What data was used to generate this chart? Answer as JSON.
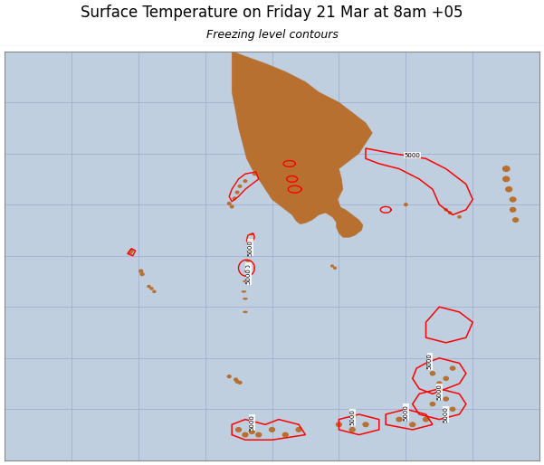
{
  "title": "Surface Temperature on Friday 21 Mar at 8am +05",
  "subtitle": "Freezing level contours",
  "title_fontsize": 12,
  "subtitle_fontsize": 9,
  "background_color": "#ffffff",
  "map_bg_color": "#bfcfdf",
  "land_color": "#b87030",
  "contour_color": "#ff0000",
  "grid_color": "#9aabcc",
  "border_color": "#888888",
  "figsize": [
    6.01,
    5.14
  ],
  "dpi": 100,
  "xlim": [
    55,
    95
  ],
  "ylim": [
    -15,
    25
  ],
  "grid_x": [
    55,
    60,
    65,
    70,
    75,
    80,
    85,
    90,
    95
  ],
  "grid_y": [
    -15,
    -10,
    -5,
    0,
    5,
    10,
    15,
    20,
    25
  ]
}
